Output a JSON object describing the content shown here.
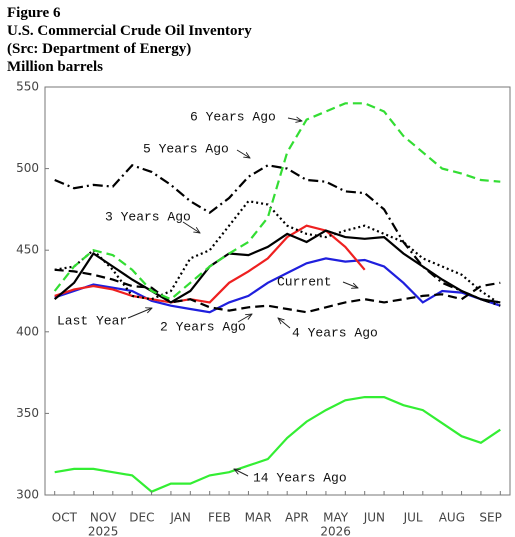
{
  "chart_data": {
    "type": "line",
    "title_lines": [
      "Figure 6",
      "U.S. Commercial Crude Oil Inventory",
      "(Src: Department of Energy)",
      "Million barrels"
    ],
    "categories": [
      "OCT",
      null,
      "NOV",
      null,
      "DEC",
      null,
      "JAN",
      null,
      "FEB",
      null,
      "MAR",
      null,
      "APR",
      null,
      "MAY",
      null,
      "JUN",
      null,
      "JUL",
      null,
      "AUG",
      null,
      "SEP",
      null
    ],
    "x_year_labels": [
      "2025",
      "2026"
    ],
    "ylim": [
      300,
      550
    ],
    "yticks": [
      300,
      350,
      400,
      450,
      500,
      550
    ],
    "grid": false,
    "series": [
      {
        "name": "Current",
        "color": "#1f1fdd",
        "dash": "solid",
        "values": [
          421,
          425,
          429,
          427,
          425,
          419,
          416,
          414,
          412,
          418,
          422,
          430,
          436,
          442,
          445,
          443,
          444,
          440,
          430,
          418,
          425,
          424,
          420,
          416
        ]
      },
      {
        "name": "Last Year",
        "color": "#ee2020",
        "dash": "solid",
        "values": [
          422,
          426,
          428,
          426,
          422,
          420,
          418,
          420,
          418,
          430,
          437,
          445,
          458,
          465,
          462,
          452,
          438,
          null,
          null,
          null,
          null,
          null,
          null,
          null
        ]
      },
      {
        "name": "2 Years Ago",
        "color": "#000000",
        "dash": "solid",
        "values": [
          420,
          430,
          448,
          440,
          432,
          425,
          418,
          425,
          440,
          448,
          447,
          452,
          460,
          455,
          462,
          458,
          457,
          458,
          448,
          440,
          432,
          425,
          420,
          418
        ]
      },
      {
        "name": "3 Years Ago",
        "color": "#000000",
        "dash": "dotted",
        "values": [
          438,
          440,
          450,
          438,
          422,
          420,
          425,
          445,
          450,
          465,
          480,
          478,
          465,
          460,
          458,
          462,
          465,
          460,
          455,
          445,
          440,
          435,
          425,
          417
        ]
      },
      {
        "name": "4 Years Ago",
        "color": "#000000",
        "dash": "dashed",
        "values": [
          438,
          437,
          435,
          432,
          428,
          427,
          418,
          420,
          415,
          413,
          415,
          416,
          414,
          412,
          415,
          418,
          420,
          418,
          420,
          422,
          423,
          420,
          428,
          430
        ]
      },
      {
        "name": "5 Years Ago",
        "color": "#000000",
        "dash": "dashdot",
        "values": [
          493,
          488,
          490,
          489,
          502,
          498,
          490,
          480,
          473,
          482,
          495,
          502,
          500,
          493,
          492,
          486,
          485,
          475,
          455,
          440,
          430,
          425,
          420,
          416
        ]
      },
      {
        "name": "6 Years Ago",
        "color": "#33dd33",
        "dash": "dashed",
        "values": [
          425,
          440,
          450,
          447,
          438,
          425,
          420,
          430,
          440,
          448,
          455,
          470,
          510,
          530,
          535,
          540,
          540,
          535,
          520,
          510,
          500,
          497,
          493,
          492
        ]
      },
      {
        "name": "14 Years Ago",
        "color": "#33ee33",
        "dash": "solid",
        "values": [
          314,
          316,
          316,
          314,
          312,
          302,
          307,
          307,
          312,
          314,
          318,
          322,
          335,
          345,
          352,
          358,
          360,
          360,
          355,
          352,
          344,
          336,
          332,
          340
        ]
      }
    ]
  }
}
